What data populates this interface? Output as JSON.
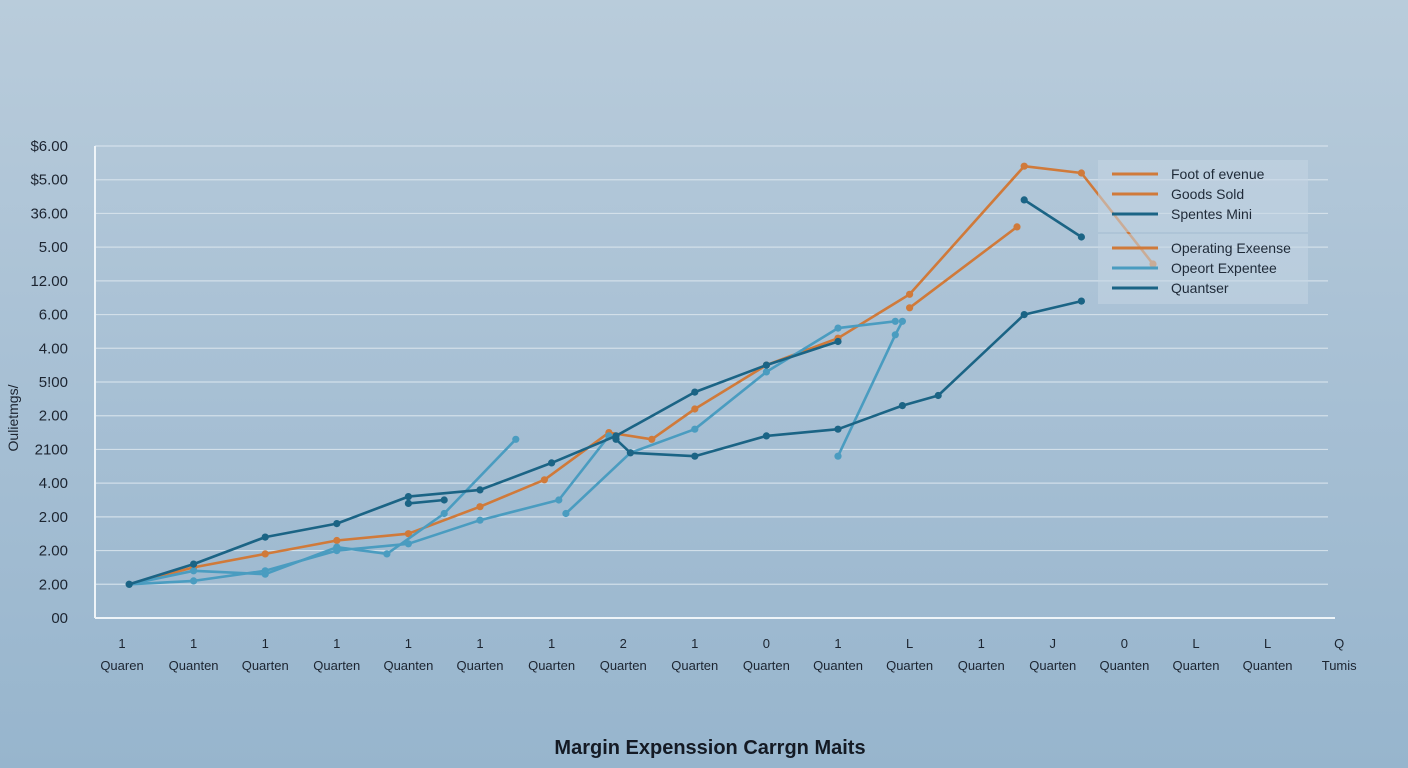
{
  "chart_data": {
    "type": "line",
    "title": "Margin Expenssion Carrgn Maits",
    "ylabel": "Oulietmgs/",
    "y_tick_labels": [
      "00",
      "2.00",
      "2.00",
      "2.00",
      "4.00",
      "2100",
      "2.00",
      "5!00",
      "4.00",
      "6.00",
      "12.00",
      "5.00",
      "36.00",
      "$5.00",
      "$6.00"
    ],
    "categories": [
      {
        "top": "1",
        "bottom": "Quaren"
      },
      {
        "top": "1",
        "bottom": "Quanten"
      },
      {
        "top": "1",
        "bottom": "Quarten"
      },
      {
        "top": "1",
        "bottom": "Quarten"
      },
      {
        "top": "1",
        "bottom": "Quanten"
      },
      {
        "top": "1",
        "bottom": "Quarten"
      },
      {
        "top": "1",
        "bottom": "Quarten"
      },
      {
        "top": "2",
        "bottom": "Quarten"
      },
      {
        "top": "1",
        "bottom": "Quarten"
      },
      {
        "top": "0",
        "bottom": "Quarten"
      },
      {
        "top": "1",
        "bottom": "Quanten"
      },
      {
        "top": "L",
        "bottom": "Quarten"
      },
      {
        "top": "1",
        "bottom": "Quarten"
      },
      {
        "top": "J",
        "bottom": "Quarten"
      },
      {
        "top": "0",
        "bottom": "Quanten"
      },
      {
        "top": "L",
        "bottom": "Quarten"
      },
      {
        "top": "L",
        "bottom": "Quanten"
      },
      {
        "top": "Q",
        "bottom": "Tumis"
      }
    ],
    "y_range": [
      0,
      14
    ],
    "grid": true,
    "legend_position": "top-right",
    "legend_groups": [
      [
        {
          "label": "Foot of evenue",
          "color": "#d07a3a"
        },
        {
          "label": "Goods Sold",
          "color": "#d07a3a"
        },
        {
          "label": "Spentes Mini",
          "color": "#1b6485"
        }
      ],
      [
        {
          "label": "Operating Exeense",
          "color": "#d07a3a"
        },
        {
          "label": "Opeort Expentee",
          "color": "#4a9cc0"
        },
        {
          "label": "Quantser",
          "color": "#1b6485"
        }
      ]
    ],
    "series": [
      {
        "color": "#d07a3a",
        "segments": [
          [
            [
              0.1,
              1.0
            ],
            [
              1.0,
              1.5
            ],
            [
              2.0,
              1.9
            ],
            [
              3.0,
              2.3
            ],
            [
              4.0,
              2.5
            ],
            [
              5.0,
              3.3
            ],
            [
              5.9,
              4.1
            ],
            [
              6.8,
              5.5
            ],
            [
              7.4,
              5.3
            ],
            [
              8.0,
              6.2
            ],
            [
              9.0,
              7.5
            ],
            [
              10.0,
              8.3
            ],
            [
              11.0,
              9.6
            ],
            [
              12.6,
              13.4
            ],
            [
              13.4,
              13.2
            ],
            [
              14.4,
              10.5
            ]
          ],
          [
            [
              11.0,
              9.2
            ],
            [
              12.5,
              11.6
            ]
          ]
        ]
      },
      {
        "color": "#4a9cc0",
        "segments": [
          [
            [
              0.1,
              1.0
            ],
            [
              1.0,
              1.1
            ],
            [
              2.0,
              1.4
            ],
            [
              3.0,
              2.0
            ],
            [
              4.0,
              2.2
            ],
            [
              5.0,
              2.9
            ],
            [
              6.1,
              3.5
            ],
            [
              6.8,
              5.4
            ]
          ],
          [
            [
              0.1,
              1.0
            ],
            [
              1.0,
              1.4
            ],
            [
              2.0,
              1.3
            ],
            [
              3.0,
              2.1
            ],
            [
              3.7,
              1.9
            ],
            [
              4.5,
              3.1
            ],
            [
              5.5,
              5.3
            ]
          ],
          [
            [
              6.2,
              3.1
            ],
            [
              7.1,
              4.9
            ],
            [
              8.0,
              5.6
            ],
            [
              9.0,
              7.3
            ],
            [
              10.0,
              8.6
            ],
            [
              10.8,
              8.8
            ]
          ],
          [
            [
              10.0,
              4.8
            ],
            [
              10.8,
              8.4
            ],
            [
              10.9,
              8.8
            ]
          ]
        ]
      },
      {
        "color": "#1b6485",
        "segments": [
          [
            [
              0.1,
              1.0
            ],
            [
              1.0,
              1.6
            ],
            [
              2.0,
              2.4
            ],
            [
              3.0,
              2.8
            ],
            [
              4.0,
              3.6
            ],
            [
              5.0,
              3.8
            ],
            [
              6.0,
              4.6
            ],
            [
              6.9,
              5.4
            ],
            [
              8.0,
              6.7
            ],
            [
              9.0,
              7.5
            ],
            [
              10.0,
              8.2
            ]
          ],
          [
            [
              4.0,
              3.4
            ],
            [
              4.5,
              3.5
            ]
          ],
          [
            [
              6.9,
              5.3
            ],
            [
              7.1,
              4.9
            ],
            [
              8.0,
              4.8
            ],
            [
              9.0,
              5.4
            ],
            [
              10.0,
              5.6
            ],
            [
              10.9,
              6.3
            ],
            [
              11.4,
              6.6
            ],
            [
              12.6,
              9.0
            ],
            [
              13.4,
              9.4
            ]
          ],
          [
            [
              12.6,
              12.4
            ],
            [
              13.4,
              11.3
            ]
          ]
        ]
      }
    ]
  }
}
